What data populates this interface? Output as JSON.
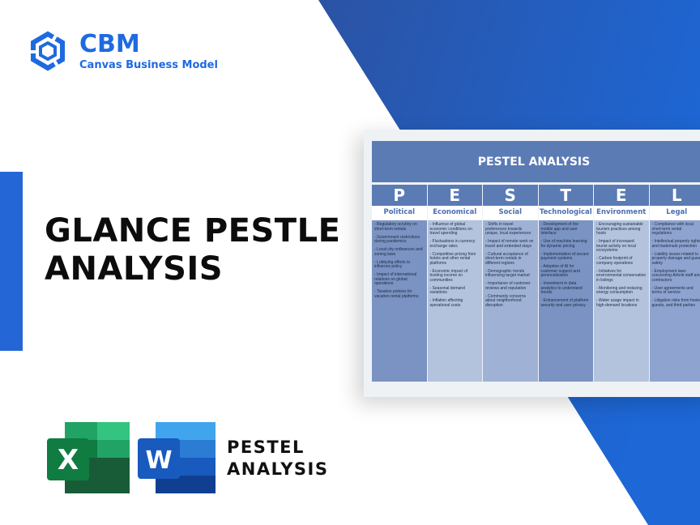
{
  "brand": {
    "name": "CBM",
    "tagline": "Canvas Business Model",
    "color": "#1f6ae0"
  },
  "headline": [
    "GLANCE PESTLE",
    "ANALYSIS"
  ],
  "footer": {
    "icons": [
      "excel-icon",
      "word-icon"
    ],
    "text": [
      "PESTEL",
      "ANALYSIS"
    ]
  },
  "colors": {
    "background_blue": "#2b55a6",
    "accent": "#2466d6",
    "table_header": "#5b7bb5"
  },
  "table": {
    "title": "PESTEL ANALYSIS",
    "columns": [
      {
        "letter": "P",
        "label": "Political",
        "color": "#7a93c2",
        "items": [
          "- Regulatory scrutiny on short-term rentals",
          "- Government restrictions during pandemics",
          "- Local city ordinances and zoning laws",
          "- Lobbying efforts to influence policy",
          "- Impact of international relations on global operations",
          "- Taxation policies for vacation rental platforms"
        ]
      },
      {
        "letter": "E",
        "label": "Economical",
        "color": "#b3c3de",
        "items": [
          "- Influence of global economic conditions on travel spending",
          "- Fluctuations in currency exchange rates",
          "- Competitive pricing from hotels and other rental platforms",
          "- Economic impact of hosting income on communities",
          "- Seasonal demand variations",
          "- Inflation affecting operational costs"
        ]
      },
      {
        "letter": "S",
        "label": "Social",
        "color": "#9fb2d6",
        "items": [
          "- Shifts in travel preferences towards unique, local experiences",
          "- Impact of remote work on travel and extended stays",
          "- Cultural acceptance of short-term rentals in different regions",
          "- Demographic trends influencing target market",
          "- Importance of customer reviews and reputation",
          "- Community concerns about neighborhood disruption"
        ]
      },
      {
        "letter": "T",
        "label": "Technological",
        "color": "#7a93c2",
        "items": [
          "- Development of the mobile app and user interface",
          "- Use of machine learning for dynamic pricing",
          "- Implementation of secure payment systems",
          "- Adoption of AI for customer support and personalization",
          "- Investment in data analytics to understand trends",
          "- Enhancement of platform security and user privacy"
        ]
      },
      {
        "letter": "E",
        "label": "Environment",
        "color": "#b3c3de",
        "items": [
          "- Encouraging sustainable tourism practices among hosts",
          "- Impact of increased tourist activity on local ecosystems",
          "- Carbon footprint of company operations",
          "- Initiatives for environmental conservation in listings",
          "- Monitoring and reducing energy consumption",
          "- Water usage impact in high-demand locations"
        ]
      },
      {
        "letter": "L",
        "label": "Legal",
        "color": "#8ea3cf",
        "items": [
          "- Compliance with local short-term rental regulations",
          "- Intellectual property rights and trademark protection",
          "- Liability issues related to property damage and guest safety",
          "- Employment laws concerning Airbnb staff and contractors",
          "- User agreements and terms of service",
          "- Litigation risks from hosts, guests, and third parties"
        ]
      }
    ]
  }
}
